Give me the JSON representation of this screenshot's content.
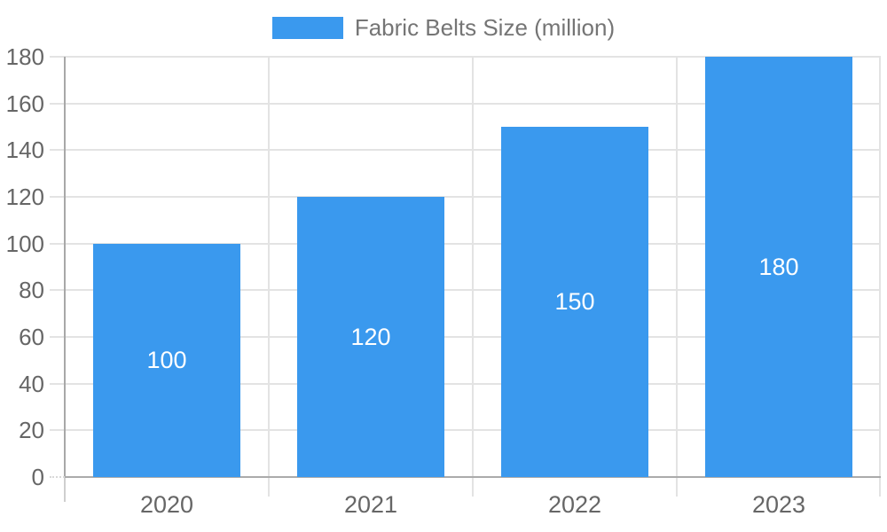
{
  "legend": {
    "label": "Fabric Belts Size (million)",
    "swatch_color": "#3a99ee"
  },
  "chart_data": {
    "type": "bar",
    "title": "",
    "xlabel": "",
    "ylabel": "",
    "categories": [
      "2020",
      "2021",
      "2022",
      "2023"
    ],
    "series": [
      {
        "name": "Fabric Belts Size (million)",
        "values": [
          100,
          120,
          150,
          180
        ]
      }
    ],
    "value_labels": [
      "100",
      "120",
      "150",
      "180"
    ],
    "ylim": [
      0,
      180
    ],
    "y_ticks": [
      0,
      20,
      40,
      60,
      80,
      100,
      120,
      140,
      160,
      180
    ],
    "grid": true,
    "legend_position": "top"
  },
  "colors": {
    "bar": "#3a99ee",
    "value_label": "#ffffff",
    "grid_line": "#e3e3e3",
    "axis_line": "#a8a8a8",
    "tick_label": "#666666",
    "legend_text": "#757575",
    "background": "#ffffff"
  }
}
